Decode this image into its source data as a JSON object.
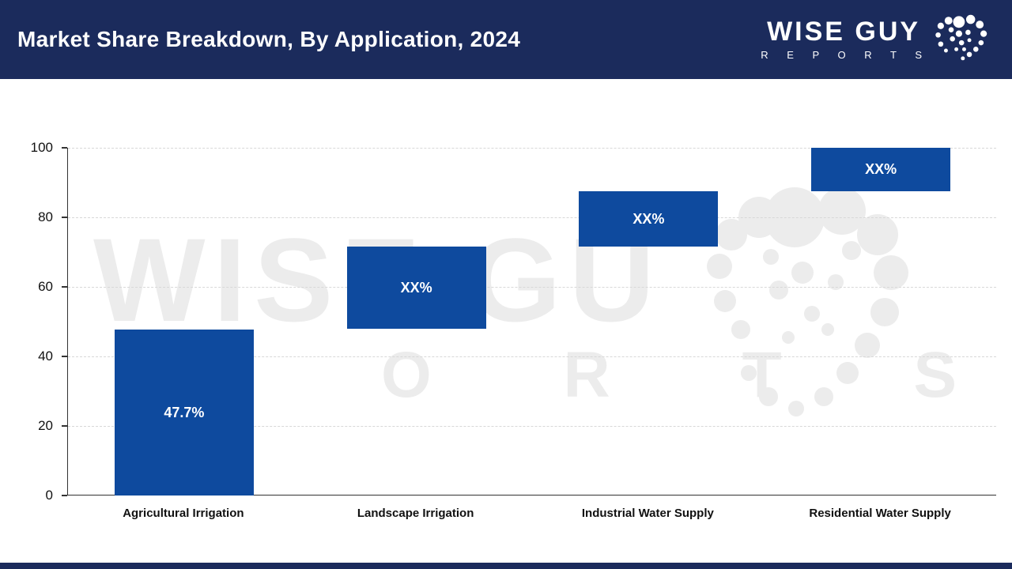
{
  "header": {
    "title": "Market Share Breakdown, By Application, 2024",
    "bg_color": "#1b2b5c",
    "logo": {
      "line1": "WISE GUY",
      "line2": "R E P O R T S"
    }
  },
  "watermark": {
    "line1": "WISE GU",
    "line2": "P O R T S"
  },
  "chart_data": {
    "type": "bar",
    "subtype": "waterfall",
    "title": "Market Share Breakdown, By Application, 2024",
    "categories": [
      "Agricultural Irrigation",
      "Landscape Irrigation",
      "Industrial Water Supply",
      "Residential Water Supply"
    ],
    "bars": [
      {
        "label": "47.7%",
        "start": 0,
        "end": 47.7
      },
      {
        "label": "XX%",
        "start": 48,
        "end": 71.5
      },
      {
        "label": "XX%",
        "start": 71.5,
        "end": 87.5
      },
      {
        "label": "XX%",
        "start": 87.5,
        "end": 100
      }
    ],
    "ylim": [
      0,
      100
    ],
    "yticks": [
      0,
      20,
      40,
      60,
      80,
      100
    ],
    "bar_color": "#0e4a9e",
    "grid": "dashed horizontal",
    "legend": "none"
  }
}
